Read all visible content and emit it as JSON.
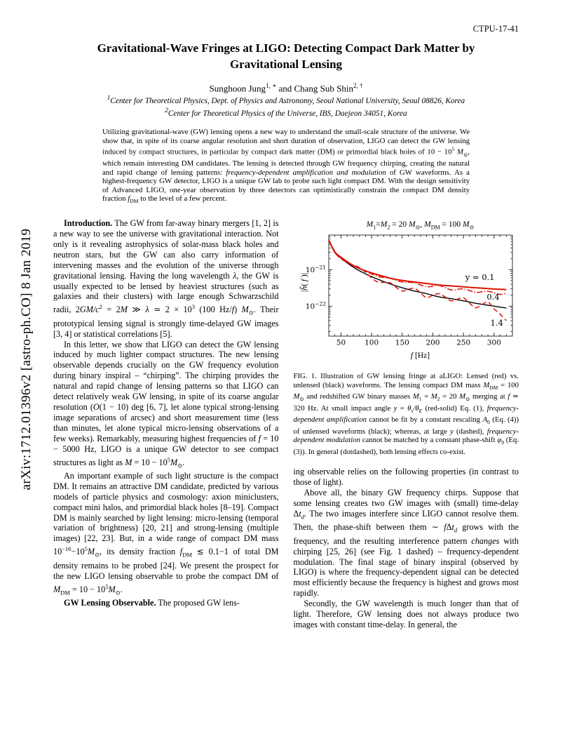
{
  "page": {
    "preprint_id": "CTPU-17-41",
    "arxiv_stamp": "arXiv:1712.01396v2 [astro-ph.CO] 8 Jan 2019"
  },
  "header": {
    "title": "Gravitational-Wave Fringes at LIGO: Detecting Compact Dark Matter by Gravitational Lensing",
    "authors_html": "Sunghoon Jung<sup>1, ∗</sup> and Chang Sub Shin<sup>2, †</sup>",
    "affiliation1_html": "<sup>1</sup>Center for Theoretical Physics, Dept. of Physics and Astronomy, Seoul National University, Seoul 08826, Korea",
    "affiliation2_html": "<sup>2</sup>Center for Theoretical Physics of the Universe, IBS, Daejeon 34051, Korea",
    "abstract_html": "Utilizing gravitational-wave (GW) lensing opens a new way to understand the small-scale structure of the universe.  We show that, in spite of its coarse angular resolution and short duration of observation, LIGO can detect the GW lensing induced by compact structures, in particular by compact dark matter (DM) or primordial black holes of 10 − 10<sup>5</sup> <i>M</i><sub>⊙</sub>, which remain interesting DM candidates.  The lensing is detected through GW frequency chirping, creating the natural and rapid change of lensing patterns: <i>frequency-dependent amplification and modulation</i> of GW waveforms.  As a highest-frequency GW detector, LIGO is a unique GW lab to probe such light compact DM. With the design sensitivity of Advanced LIGO, one-year observation by three detectors can optimistically constrain the compact DM density fraction <i>f</i><sub>DM</sub> to the level of a few percent."
  },
  "left_column": {
    "paragraphs_html": [
      "<b>Introduction.</b> The GW from far-away binary mergers [1, 2] is a new way to see the universe with gravitational interaction.  Not only is it revealing astrophysics of solar-mass black holes and neutron stars, but the GW can also carry information of intervening masses and the evolution of the universe through gravitational lensing. Having the long wavelength <i>λ</i>, the GW is usually expected to be lensed by heaviest structures (such as galaxies and their clusters) with large enough Schwarzschild radii, 2<i>GM/c</i><sup>2</sup> = 2<i>M</i> ≫ <i>λ</i> ≃ 2 × 10<sup>3</sup> (100 Hz/<i>f</i>) <i>M</i><sub>⊙</sub>. Their prototypical lensing signal is strongly time-delayed GW images [3, 4] or statistical correlations [5].",
      "In this letter, we show that LIGO can detect the GW lensing induced by much lighter compact structures. The new lensing observable depends crucially on the GW frequency evolution during binary inspiral – “chirping”. The chirping provides the natural and rapid change of lensing patterns so that LIGO can detect relatively weak GW lensing, in spite of its coarse angular resolution (<i>O</i>(1 − 10) deg [6, 7], let alone typical strong-lensing image separations of arcsec) and short measurement time (less than minutes, let alone typical micro-lensing observations of a few weeks).  Remarkably, measuring highest frequencies of <i>f</i> = 10 − 5000 Hz, LIGO is a unique GW detector to see compact structures as light as <i>M</i> = 10 − 10<sup>5</sup><i>M</i><sub>⊙</sub>.",
      "An important example of such light structure is the compact DM. It remains an attractive DM candidate, predicted by various models of particle physics and cosmology:  axion miniclusters, compact mini halos, and primordial black holes [8–19].  Compact DM is mainly searched by light lensing: micro-lensing (temporal variation of brightness) [20, 21] and strong-lensing (multiple images) [22, 23].  But, in a wide range of compact DM mass 10<sup>−16</sup>−10<sup>5</sup><i>M</i><sub>⊙</sub>, its density fraction <i>f</i><sub>DM</sub> ≲ 0.1−1 of total DM density remains to be probed [24]. We present the prospect for the new LIGO lensing observable to probe the compact DM of <i>M</i><sub>DM</sub> = 10 − 10<sup>5</sup><i>M</i><sub>⊙</sub>.",
      "<b>GW Lensing Observable.</b> The proposed GW lens-"
    ]
  },
  "right_column": {
    "figure_caption_html": "FIG. 1. Illustration of GW lensing fringe at aLIGO: Lensed (red) vs. unlensed (black) waveforms. The lensing compact DM mass <i>M</i><sub>DM</sub> = 100 <i>M</i><sub>⊙</sub> and redshifted GW binary masses <i>M</i><sub>1</sub> = <i>M</i><sub>2</sub> = 20 <i>M</i><sub>⊙</sub> merging at <i>f</i> ≃ 320 Hz. At small impact angle <i>y</i> = <i>θ<sub>s</sub>/θ<sub>E</sub></i> (red-solid) Eq. (1), <i>frequency-dependent amplification</i> cannot be fit by a constant rescaling <i>A</i><sub>0</sub> (Eq. (4)) of unlensed waveforms (black); whereas, at large <i>y</i> (dashed), <i>frequency-dependent modulation</i> cannot be matched by a constant phase-shift <i>φ</i><sub>0</sub> (Eq. (3)). In general (dotdashed), both lensing effects co-exist.",
    "paragraphs_html": [
      "ing observable relies on the following properties (in contrast to those of light).",
      "Above all, the binary GW frequency chirps.  Suppose that some lensing creates two GW images with (small) time-delay Δ<i>t<sub>d</sub></i>.  The two images interfere since LIGO cannot resolve them.  Then, the phase-shift between them ∼ <i>f</i>Δ<i>t<sub>d</sub></i> grows with the frequency, and the resulting interference pattern <i>changes</i> with chirping [25, 26] (see Fig. 1 dashed) – frequency-dependent modulation.  The final stage of binary inspiral (observed by LIGO) is where the frequency-dependent signal can be detected most efficiently because the frequency is highest and grows most rapidly.",
      "Secondly, the GW wavelength is much longer than that of light. Therefore, GW lensing does not always produce two images with constant time-delay.  In general, the"
    ]
  },
  "chart_data": {
    "type": "line",
    "title_html": "<i>M</i><sub>1</sub>=<i>M</i><sub>2</sub> = 20 <i>M</i><sub>⊙</sub>, <i>M</i><sub>DM</sub> = 100 <i>M</i><sub>⊙</sub>",
    "ylabel_html": "|<i>h̃</i>( <i>f</i> )|",
    "xlabel_html": "<i>f</i> [Hz]",
    "xlim": [
      30,
      330
    ],
    "ylim": [
      1.5e-23,
      9e-21
    ],
    "yscale": "log",
    "grid": false,
    "legend_position": "none",
    "x_ticks": [
      50,
      100,
      150,
      200,
      250,
      300
    ],
    "x_minor_step": 10,
    "y_ticks": [
      {
        "value": 1e-21,
        "base": "10",
        "exp": "−21"
      },
      {
        "value": 1e-22,
        "base": "10",
        "exp": "−22"
      }
    ],
    "series": [
      {
        "name": "unlensed (black)",
        "color": "#000000",
        "style": "solid",
        "width": 1.4,
        "points": [
          [
            30,
            6.4e-21
          ],
          [
            40,
            2.95e-21
          ],
          [
            50,
            2.1e-21
          ],
          [
            70,
            1.18e-21
          ],
          [
            90,
            7.7e-22
          ],
          [
            110,
            5.5e-22
          ],
          [
            130,
            4.1e-22
          ],
          [
            150,
            3.2e-22
          ],
          [
            170,
            2.6e-22
          ],
          [
            190,
            2.2e-22
          ],
          [
            210,
            1.8e-22
          ],
          [
            230,
            1.6e-22
          ],
          [
            250,
            1.4e-22
          ],
          [
            270,
            1.2e-22
          ],
          [
            290,
            1.06e-22
          ],
          [
            310,
            9.4e-23
          ],
          [
            320,
            8.9e-23
          ]
        ]
      },
      {
        "name": "lensed y=1.4 (dashed)",
        "color": "#dd1100",
        "style": "dashed",
        "width": 1.5,
        "points": [
          [
            30,
            6.5e-21
          ],
          [
            40,
            3e-21
          ],
          [
            50,
            2e-21
          ],
          [
            60,
            1.6e-21
          ],
          [
            70,
            1.35e-21
          ],
          [
            80,
            1.15e-21
          ],
          [
            90,
            8.6e-22
          ],
          [
            100,
            6e-22
          ],
          [
            110,
            4.6e-22
          ],
          [
            120,
            4.5e-22
          ],
          [
            130,
            4.4e-22
          ],
          [
            140,
            3.3e-22
          ],
          [
            150,
            2.6e-22
          ],
          [
            160,
            2.9e-22
          ],
          [
            170,
            3.1e-22
          ],
          [
            180,
            2.3e-22
          ],
          [
            190,
            1.7e-22
          ],
          [
            200,
            2e-22
          ],
          [
            210,
            2.2e-22
          ],
          [
            220,
            1.8e-22
          ],
          [
            230,
            1.4e-22
          ],
          [
            240,
            1.55e-22
          ],
          [
            250,
            1.7e-22
          ],
          [
            260,
            1.2e-22
          ],
          [
            270,
            9e-23
          ],
          [
            280,
            1.1e-22
          ],
          [
            290,
            1.3e-22
          ],
          [
            300,
            8.5e-23
          ],
          [
            310,
            6e-23
          ],
          [
            320,
            4e-23
          ]
        ]
      },
      {
        "name": "lensed y=0.4 (dotdashed)",
        "color": "#dd1100",
        "style": "dotdash",
        "width": 1.5,
        "points": [
          [
            30,
            6.5e-21
          ],
          [
            40,
            3e-21
          ],
          [
            50,
            2.15e-21
          ],
          [
            70,
            1.28e-21
          ],
          [
            90,
            9.2e-22
          ],
          [
            110,
            6.6e-22
          ],
          [
            130,
            5.8e-22
          ],
          [
            150,
            4.6e-22
          ],
          [
            170,
            4.4e-22
          ],
          [
            190,
            3.4e-22
          ],
          [
            210,
            3.7e-22
          ],
          [
            230,
            2.8e-22
          ],
          [
            250,
            3e-22
          ],
          [
            270,
            2.4e-22
          ],
          [
            290,
            2.55e-22
          ],
          [
            310,
            2.1e-22
          ],
          [
            320,
            2.3e-22
          ]
        ]
      },
      {
        "name": "lensed y=0.1 (red-solid)",
        "color": "#dd1100",
        "style": "solid",
        "width": 2.0,
        "points": [
          [
            30,
            6.5e-21
          ],
          [
            40,
            3.1e-21
          ],
          [
            50,
            2.2e-21
          ],
          [
            70,
            1.31e-21
          ],
          [
            90,
            9.3e-22
          ],
          [
            110,
            7.3e-22
          ],
          [
            130,
            5.9e-22
          ],
          [
            150,
            5.1e-22
          ],
          [
            170,
            4.6e-22
          ],
          [
            190,
            4.2e-22
          ],
          [
            210,
            3.8e-22
          ],
          [
            230,
            3.6e-22
          ],
          [
            250,
            3.4e-22
          ],
          [
            270,
            3.2e-22
          ],
          [
            290,
            3.05e-22
          ],
          [
            310,
            2.9e-22
          ],
          [
            320,
            2.85e-22
          ]
        ]
      }
    ],
    "annotations": [
      {
        "text": "y = 0.1",
        "x": 253,
        "y": 5.2e-22,
        "color": "#000000"
      },
      {
        "text": "0.4",
        "x": 288,
        "y": 1.5e-22,
        "color": "#000000"
      },
      {
        "text": "1.4",
        "x": 294,
        "y": 2.9e-23,
        "color": "#000000"
      }
    ]
  }
}
